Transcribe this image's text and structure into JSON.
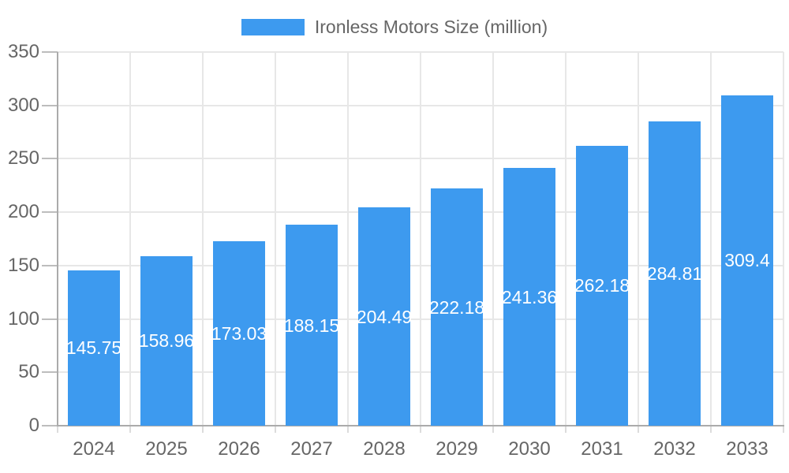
{
  "legend": {
    "items": [
      {
        "label": "Ironless Motors Size (million)",
        "color": "#3D9AEF"
      }
    ]
  },
  "chart_data": {
    "type": "bar",
    "title": "",
    "xlabel": "",
    "ylabel": "",
    "categories": [
      "2024",
      "2025",
      "2026",
      "2027",
      "2028",
      "2029",
      "2030",
      "2031",
      "2032",
      "2033"
    ],
    "series": [
      {
        "name": "Ironless Motors Size (million)",
        "color": "#3D9AEF",
        "values": [
          145.75,
          158.96,
          173.03,
          188.15,
          204.49,
          222.18,
          241.36,
          262.18,
          284.81,
          309.4
        ]
      }
    ],
    "value_labels": [
      "145.75",
      "158.96",
      "173.03",
      "188.15",
      "204.49",
      "222.18",
      "241.36",
      "262.18",
      "284.81",
      "309.4"
    ],
    "ylim": [
      0,
      350
    ],
    "yticks": [
      "0",
      "50",
      "100",
      "150",
      "200",
      "250",
      "300",
      "350"
    ],
    "grid": true,
    "legend_position": "top"
  },
  "colors": {
    "bar": "#3D9AEF",
    "grid": "#e7e7e7",
    "axis_border": "#ababab",
    "y_tick": "#bdbdbd",
    "x_tick": "#dcdcdc",
    "tick_label": "#666666",
    "value_label": "#ffffff",
    "legend_label": "#666666",
    "background": "#ffffff"
  }
}
